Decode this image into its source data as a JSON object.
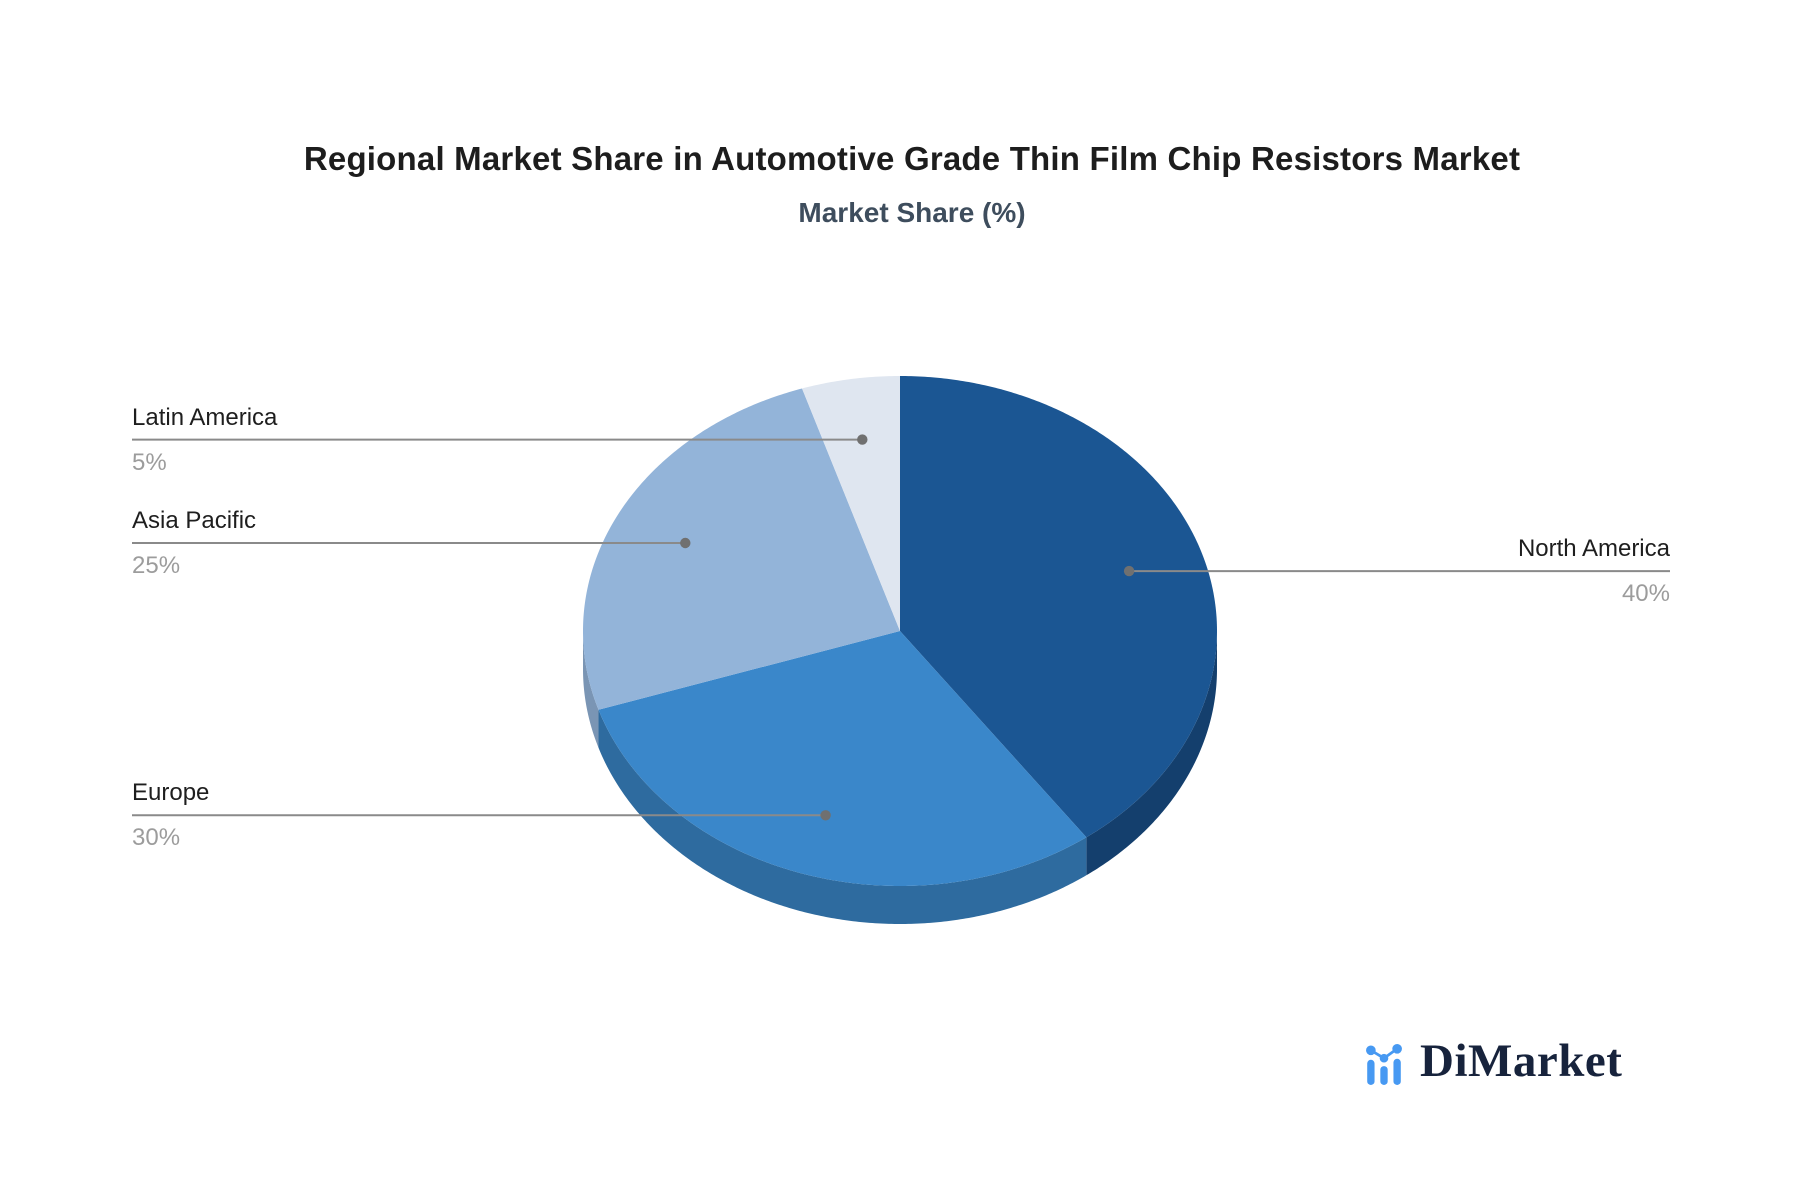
{
  "title": "Regional Market Share in Automotive Grade Thin Film Chip Resistors Market",
  "subtitle": "Market Share (%)",
  "chart_data": {
    "type": "pie",
    "style": "3d",
    "title": "Regional Market Share in Automotive Grade Thin Film Chip Resistors Market",
    "subtitle": "Market Share (%)",
    "unit": "%",
    "start_angle": "top",
    "direction": "clockwise",
    "legend_position": "callout-labels",
    "slices": [
      {
        "label": "North America",
        "value": 40,
        "value_label": "40%",
        "color": "#1B5693",
        "side_color": "#143F6D",
        "callout_side": "right"
      },
      {
        "label": "Europe",
        "value": 30,
        "value_label": "30%",
        "color": "#3A87CA",
        "side_color": "#2E6B9F",
        "callout_side": "left"
      },
      {
        "label": "Asia Pacific",
        "value": 25,
        "value_label": "25%",
        "color": "#93B4D9",
        "side_color": "#7A95B4",
        "callout_side": "left"
      },
      {
        "label": "Latin America",
        "value": 5,
        "value_label": "5%",
        "color": "#DFE6F0",
        "side_color": "#C4CFDE",
        "callout_side": "left"
      }
    ],
    "callout_line_color": "#8A8A8A",
    "callout_dot_color": "#707070",
    "label_text_color": "#1E1E1E",
    "value_text_color": "#9C9C9C"
  },
  "logo": {
    "text": "DiMarket",
    "icon": "bar-line-chart-icon",
    "accent_color": "#4799F2",
    "text_color": "#17233C"
  }
}
